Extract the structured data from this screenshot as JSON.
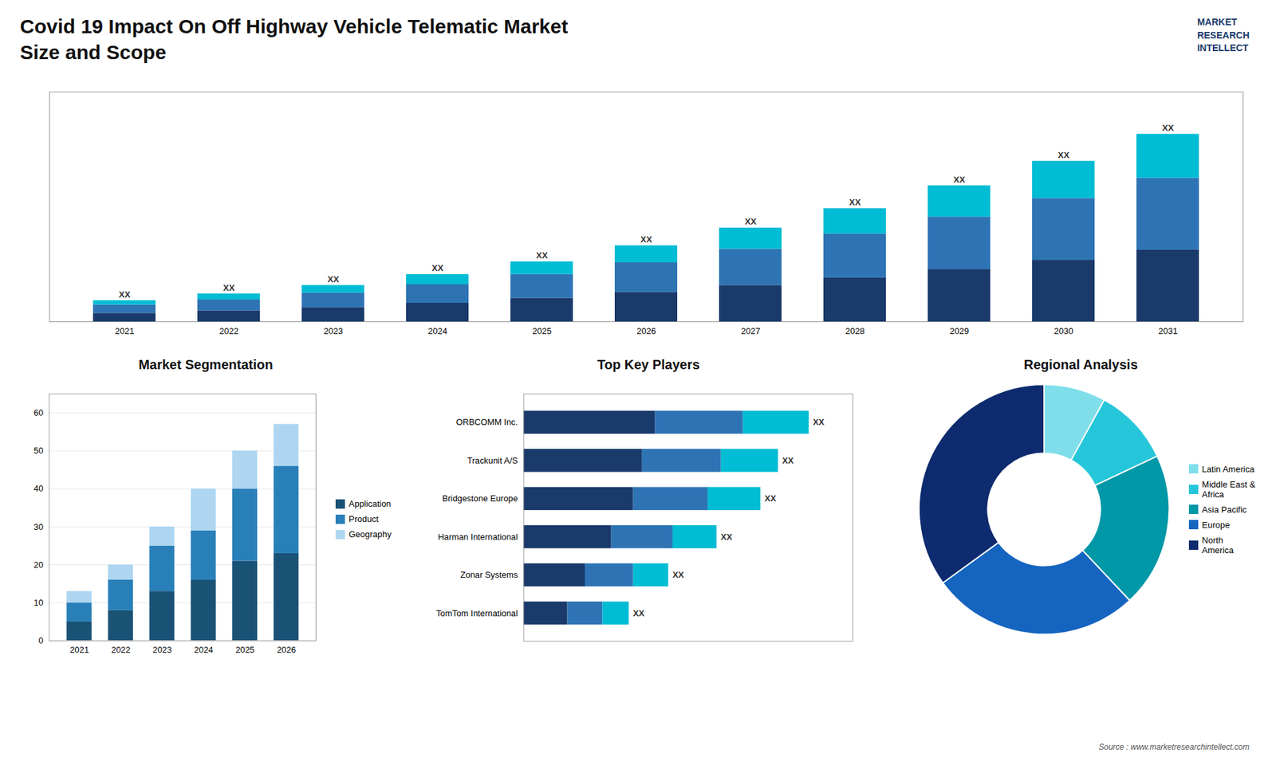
{
  "title": "Covid 19 Impact On Off Highway Vehicle Telematic Market\nSize and Scope",
  "annotations": [
    "MARKET\nRESEARCH\nINTELLECT",
    "Source : www.marketresearchintellect.com"
  ],
  "chart_data": [
    {
      "type": "bar",
      "stacked": true,
      "categories": [
        "2021",
        "2022",
        "2023",
        "2024",
        "2025",
        "2026",
        "2027",
        "2028",
        "2029",
        "2030",
        "2031"
      ],
      "series": [
        {
          "color": "#1a3a6b",
          "values": [
            1,
            1.3,
            1.7,
            2.2,
            2.8,
            3.5,
            4.3,
            5.2,
            6.2,
            7.3,
            8.5
          ]
        },
        {
          "color": "#2e74b5",
          "values": [
            1,
            1.3,
            1.7,
            2.2,
            2.8,
            3.5,
            4.3,
            5.2,
            6.2,
            7.3,
            8.5
          ]
        },
        {
          "color": "#00bcd4",
          "values": [
            0.5,
            0.7,
            0.9,
            1.2,
            1.5,
            2.0,
            2.5,
            3.0,
            3.7,
            4.4,
            5.2
          ]
        }
      ],
      "ylim": [
        0,
        27.2
      ],
      "tick_labels": "x",
      "value_labels": [
        "XX",
        "XX",
        "XX",
        "XX",
        "XX",
        "XX",
        "XX",
        "XX",
        "XX",
        "XX",
        "XX"
      ]
    },
    {
      "type": "bar",
      "title": "Market Segmentation",
      "stacked": true,
      "categories": [
        "2021",
        "2022",
        "2023",
        "2024",
        "2025",
        "2026"
      ],
      "series": [
        {
          "name": "Application",
          "color": "#1a5276",
          "values": [
            5,
            8,
            13,
            16,
            21,
            23
          ]
        },
        {
          "name": "Product",
          "color": "#2980b9",
          "values": [
            5,
            8,
            12,
            13,
            19,
            23
          ]
        },
        {
          "name": "Geography",
          "color": "#aed6f1",
          "values": [
            3,
            4,
            5,
            11,
            10,
            11
          ]
        }
      ],
      "ylim": [
        0,
        65
      ],
      "yticks": [
        0,
        10,
        20,
        30,
        40,
        50,
        60
      ],
      "grid": true,
      "legend": "right"
    },
    {
      "type": "bar",
      "title": "Top Key Players",
      "orientation": "horizontal",
      "stacked": true,
      "categories": [
        "ORBCOMM Inc.",
        "Trackunit A/S",
        "Bridgestone Europe",
        "Harman International",
        "Zonar Systems",
        "TomTom International"
      ],
      "series": [
        {
          "color": "#1a3a6b",
          "values": [
            30,
            27,
            25,
            20,
            14,
            10
          ]
        },
        {
          "color": "#2e74b5",
          "values": [
            20,
            18,
            17,
            14,
            11,
            8
          ]
        },
        {
          "color": "#00bcd4",
          "values": [
            15,
            13,
            12,
            10,
            8,
            6
          ]
        }
      ],
      "xlim": [
        0,
        75
      ],
      "tick_labels": "y",
      "value_labels": [
        "XX",
        "XX",
        "XX",
        "XX",
        "XX",
        "XX"
      ]
    },
    {
      "type": "pie",
      "title": "Regional Analysis",
      "categories": [
        "Latin America",
        "Middle East &\nAfrica",
        "Asia Pacific",
        "Europe",
        "North America"
      ],
      "values": [
        8,
        10,
        20,
        27,
        35
      ],
      "colors": [
        "#80deea",
        "#26c6da",
        "#0097a7",
        "#1565c0",
        "#0d2b6e"
      ],
      "legend": "right"
    }
  ]
}
